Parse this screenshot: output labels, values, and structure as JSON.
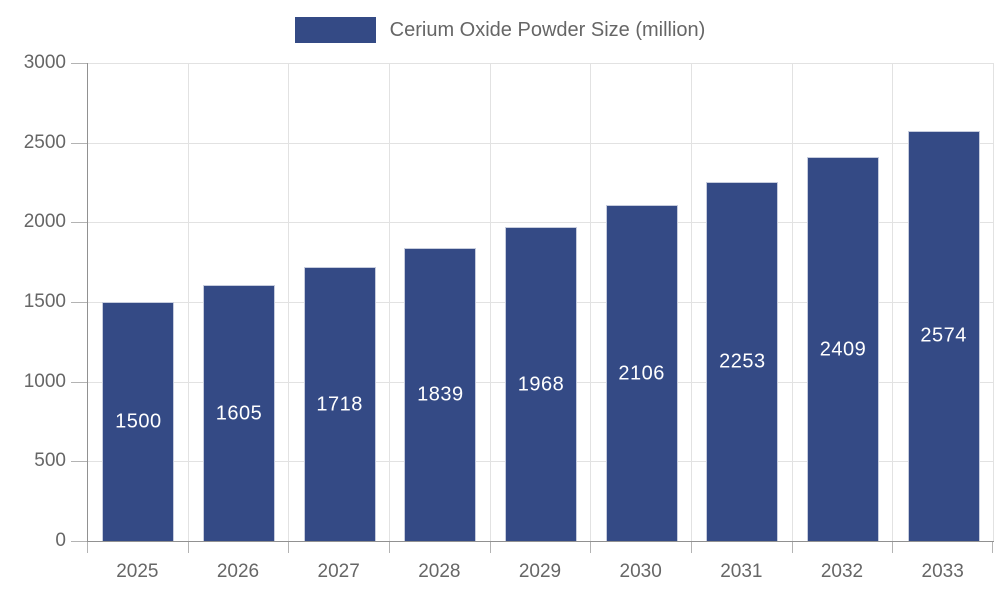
{
  "legend": {
    "label": "Cerium Oxide Powder Size (million)"
  },
  "chart_data": {
    "type": "bar",
    "title": "Cerium Oxide Powder Size (million)",
    "series_name": "Cerium Oxide Powder Size (million)",
    "categories": [
      "2025",
      "2026",
      "2027",
      "2028",
      "2029",
      "2030",
      "2031",
      "2032",
      "2033"
    ],
    "values": [
      1500,
      1605,
      1718,
      1839,
      1968,
      2106,
      2253,
      2409,
      2574
    ],
    "xlabel": "",
    "ylabel": "",
    "ylim": [
      0,
      3000
    ],
    "yticks": [
      0,
      500,
      1000,
      1500,
      2000,
      2500,
      3000
    ],
    "grid": true,
    "legend_position": "top",
    "colors": {
      "bar": "#344a85",
      "bar_value_label": "#ffffff",
      "axis_text": "#666666",
      "gridline": "#e2e2e2",
      "axis_line": "#919191"
    }
  }
}
